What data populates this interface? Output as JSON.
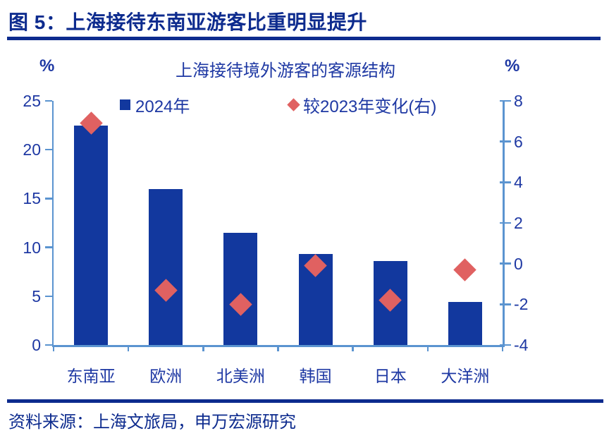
{
  "figure": {
    "title": "图 5：上海接待东南亚游客比重明显提升",
    "source": "资料来源：上海文旅局，申万宏源研究"
  },
  "chart_data": {
    "type": "bar",
    "title": "上海接待境外游客的客源结构",
    "categories": [
      "东南亚",
      "欧洲",
      "北美洲",
      "韩国",
      "日本",
      "大洋洲"
    ],
    "series": [
      {
        "name": "2024年",
        "type": "bar",
        "axis": "left",
        "values": [
          22.5,
          16.0,
          11.5,
          9.3,
          8.6,
          4.4
        ]
      },
      {
        "name": "较2023年变化(右)",
        "type": "scatter",
        "marker": "diamond",
        "axis": "right",
        "values": [
          6.9,
          -1.3,
          -2.0,
          -0.1,
          -1.8,
          -0.3
        ]
      }
    ],
    "left_axis": {
      "label": "%",
      "min": 0,
      "max": 25,
      "ticks": [
        0,
        5,
        10,
        15,
        20,
        25
      ]
    },
    "right_axis": {
      "label": "%",
      "min": -4,
      "max": 8,
      "ticks": [
        -4,
        -2,
        0,
        2,
        4,
        6,
        8
      ]
    },
    "legend_position": "top",
    "grid": false
  },
  "colors": {
    "navy": "#0d2b8e",
    "text": "#1e38a3",
    "bar": "#12389e",
    "diamond": "#e06161",
    "axis": "#5b94d0"
  }
}
